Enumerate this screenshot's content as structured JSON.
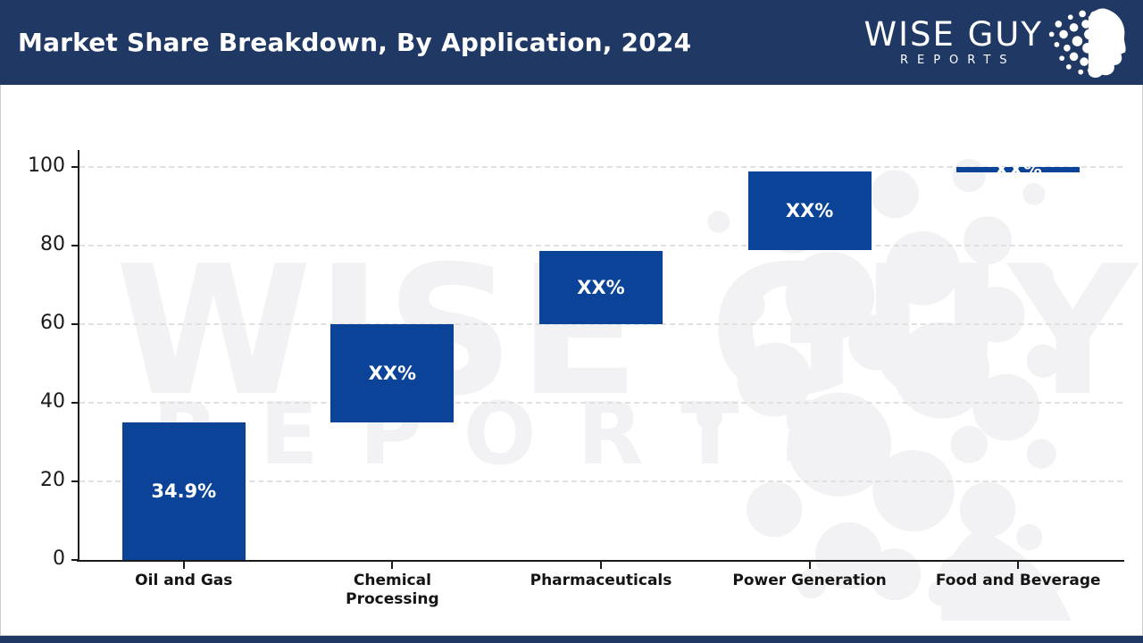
{
  "header": {
    "title": "Market Share Breakdown, By Application, 2024",
    "logo": {
      "line1": "WISE GUY",
      "line2": "REPORTS"
    }
  },
  "watermark": {
    "line1": "WISE GUY",
    "line2": "REPORTS"
  },
  "colors": {
    "header_bg": "#1f3864",
    "footer_bg": "#1f3864",
    "bar": "#0b4399",
    "bar_label": "#ffffff",
    "grid": "#e0e0e0",
    "axis": "#1a1a1a",
    "watermark": "#f2f2f4"
  },
  "chart_data": {
    "type": "bar",
    "subtype": "waterfall",
    "title": "Market Share Breakdown, By Application, 2024",
    "categories": [
      "Oil and Gas",
      "Chemical\nProcessing",
      "Pharmaceuticals",
      "Power Generation",
      "Food and Beverage"
    ],
    "segments": [
      {
        "category": "Oil and Gas",
        "start": 0,
        "end": 34.9,
        "label": "34.9%"
      },
      {
        "category": "Chemical Processing",
        "start": 35.0,
        "end": 60.0,
        "label": "XX%"
      },
      {
        "category": "Pharmaceuticals",
        "start": 60.0,
        "end": 78.6,
        "label": "XX%"
      },
      {
        "category": "Power Generation",
        "start": 78.9,
        "end": 98.9,
        "label": "XX%"
      },
      {
        "category": "Food and Beverage",
        "start": 98.7,
        "end": 100,
        "label": "XX%"
      }
    ],
    "yticks": [
      0,
      20,
      40,
      60,
      80,
      100
    ],
    "ylim": [
      0,
      105
    ],
    "xlabel": "",
    "ylabel": "",
    "grid": "horizontal-dashed",
    "legend": null
  }
}
